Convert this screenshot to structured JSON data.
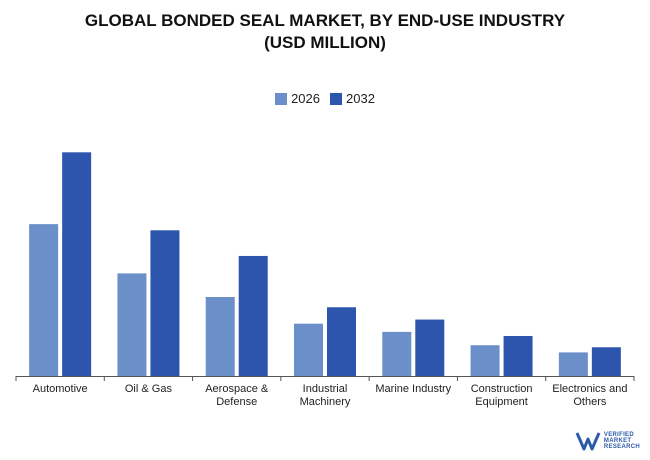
{
  "chart_data": {
    "type": "bar",
    "title_lines": [
      "GLOBAL BONDED SEAL MARKET, BY END-USE INDUSTRY",
      "(USD MILLION)"
    ],
    "categories": [
      [
        "Automotive"
      ],
      [
        "Oil & Gas"
      ],
      [
        "Aerospace &",
        "Defense"
      ],
      [
        "Industrial",
        "Machinery"
      ],
      [
        "Marine Industry"
      ],
      [
        "Construction",
        "Equipment"
      ],
      [
        "Electronics and",
        "Others"
      ]
    ],
    "series": [
      {
        "name": "2026",
        "color": "#6b8fc9",
        "values": [
          148,
          100,
          77,
          51,
          43,
          30,
          23
        ]
      },
      {
        "name": "2032",
        "color": "#2e55ad",
        "values": [
          218,
          142,
          117,
          67,
          55,
          39,
          28
        ]
      }
    ],
    "ylim": [
      0,
      230
    ],
    "legend_position": "top-center",
    "grid": false,
    "xlabel": "",
    "ylabel": ""
  },
  "logo": {
    "lines": [
      "VERIFIED",
      "MARKET",
      "RESEARCH"
    ]
  }
}
